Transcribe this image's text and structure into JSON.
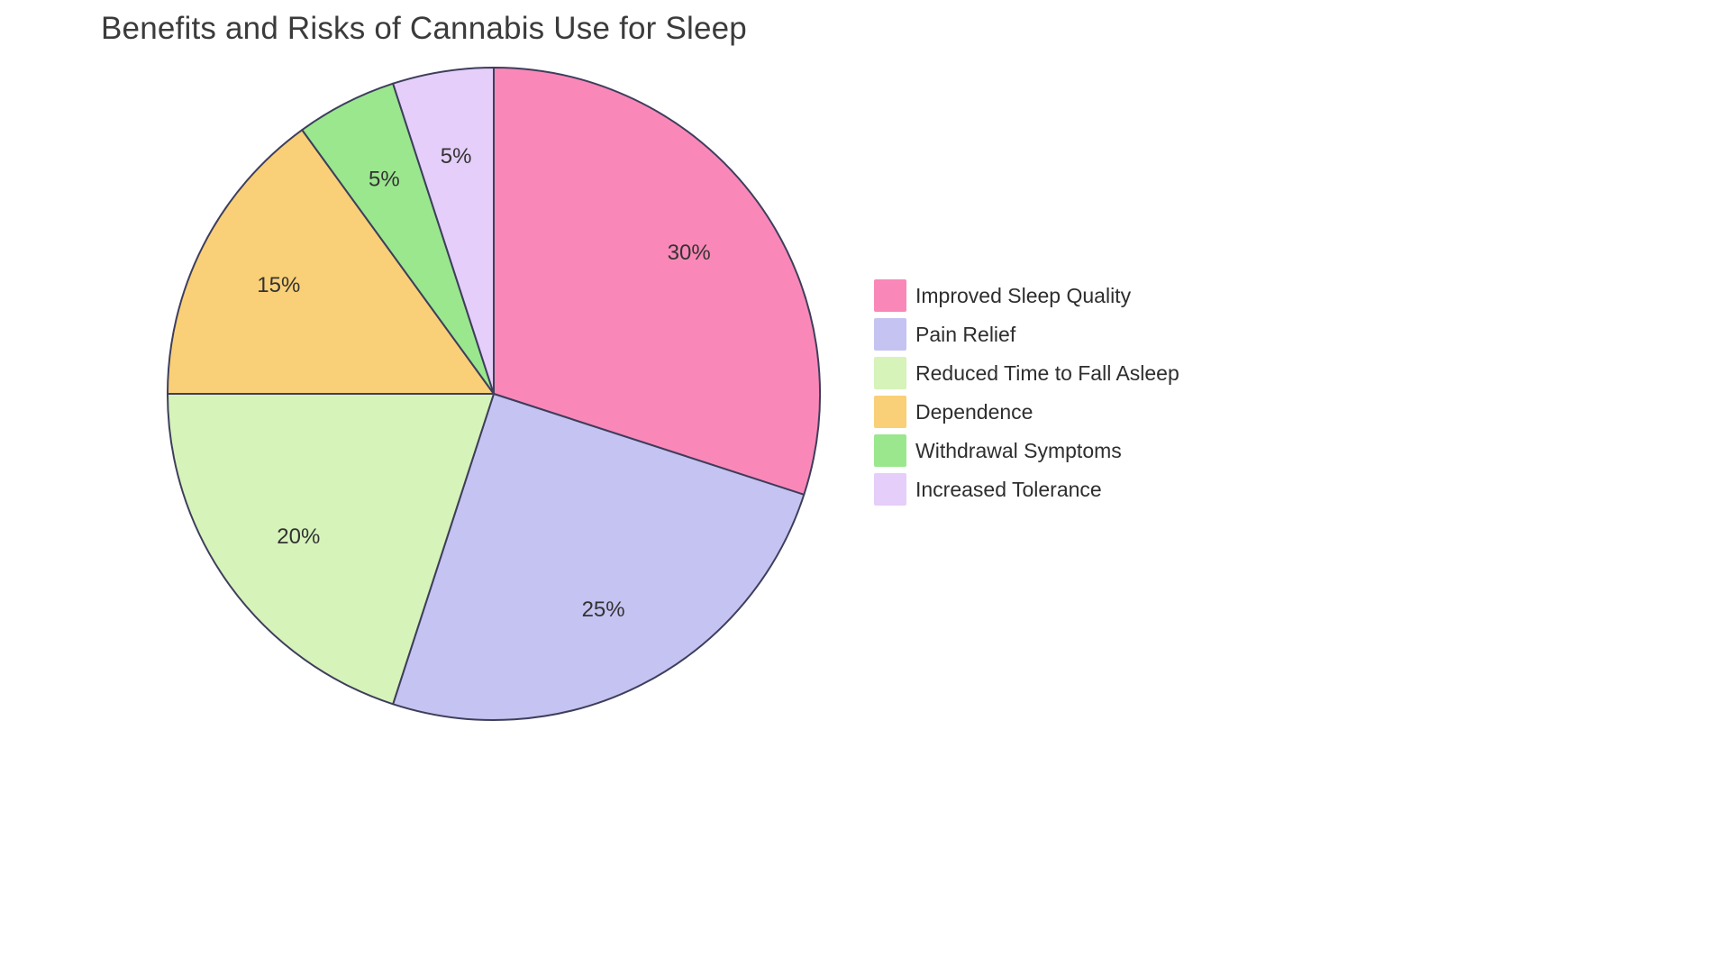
{
  "title": "Benefits and Risks of Cannabis Use for Sleep",
  "chart_data": {
    "type": "pie",
    "title": "Benefits and Risks of Cannabis Use for Sleep",
    "direction": "clockwise",
    "start_angle_deg": 0,
    "legend_position": "right",
    "stroke_color": "#3e3e5c",
    "slice_label_color": "#333333",
    "background_color": "#ffffff",
    "slices": [
      {
        "label": "Improved Sleep Quality",
        "value": 30,
        "percent_label": "30%",
        "color": "#f988b8"
      },
      {
        "label": "Pain Relief",
        "value": 25,
        "percent_label": "25%",
        "color": "#c5c3f1"
      },
      {
        "label": "Reduced Time to Fall Asleep",
        "value": 20,
        "percent_label": "20%",
        "color": "#d6f3ba"
      },
      {
        "label": "Dependence",
        "value": 15,
        "percent_label": "15%",
        "color": "#f9d077"
      },
      {
        "label": "Withdrawal Symptoms",
        "value": 5,
        "percent_label": "5%",
        "color": "#9ae78e"
      },
      {
        "label": "Increased Tolerance",
        "value": 5,
        "percent_label": "5%",
        "color": "#e5cef9"
      }
    ]
  }
}
